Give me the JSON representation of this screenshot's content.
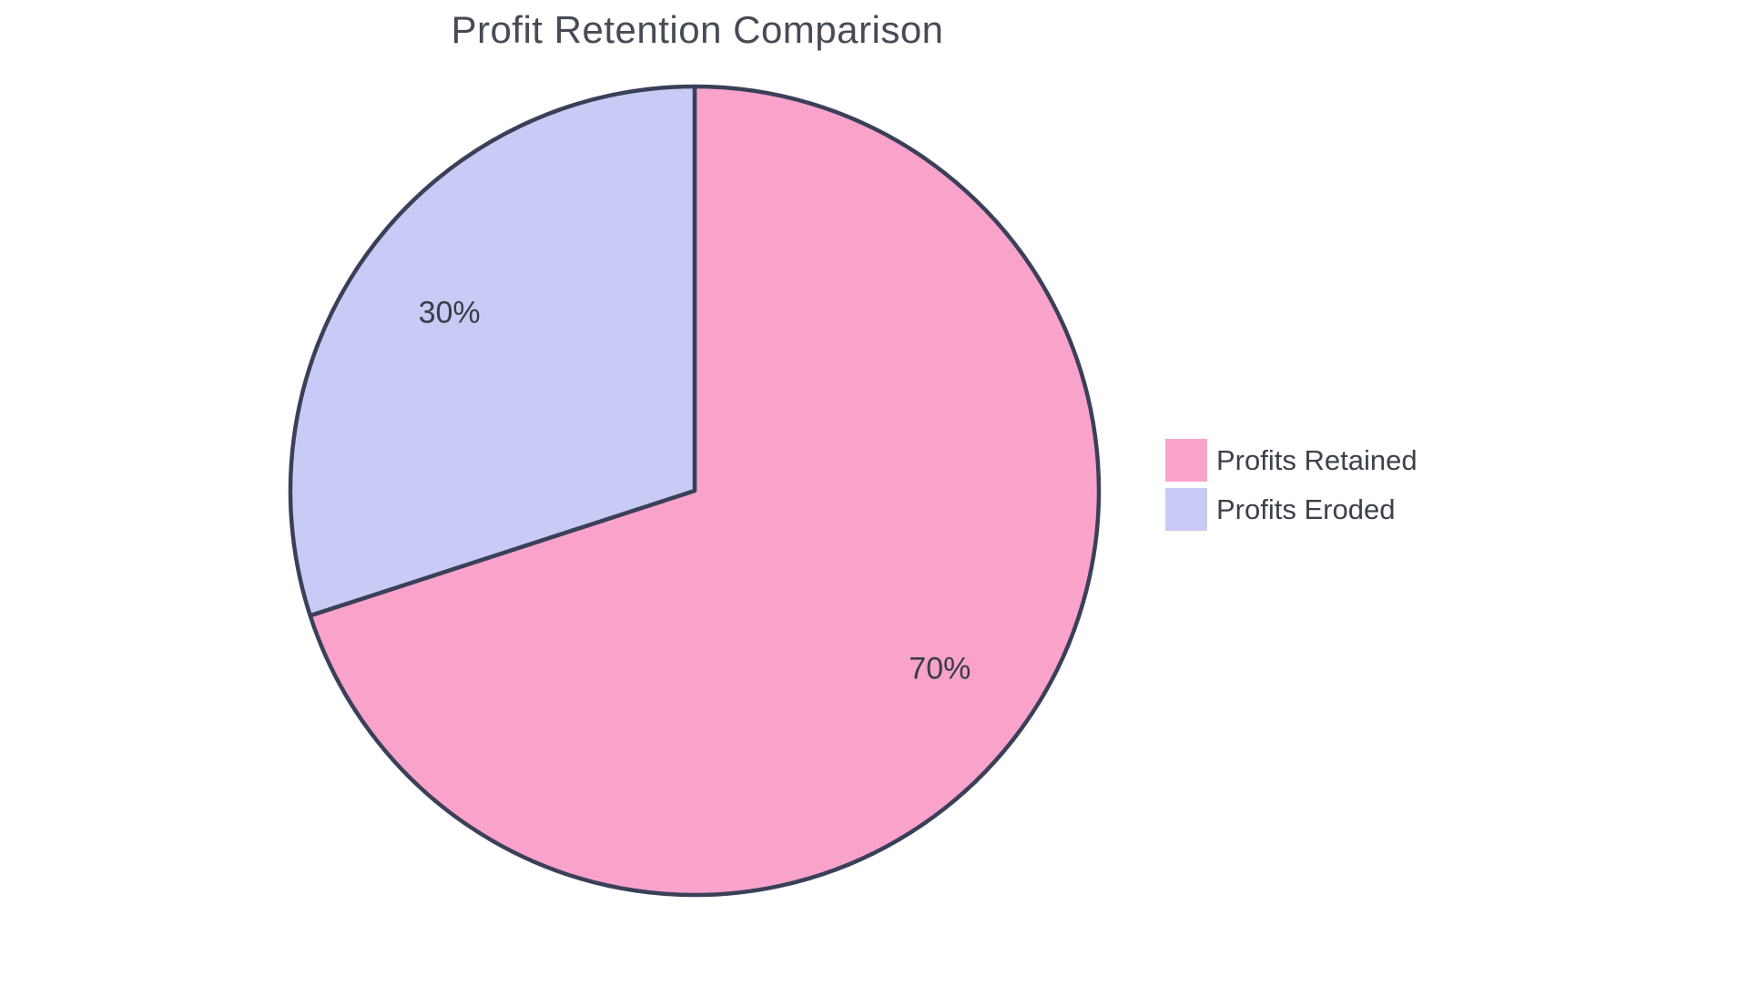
{
  "chart_data": {
    "type": "pie",
    "title": "Profit Retention Comparison",
    "slices": [
      {
        "label": "Profits Retained",
        "value": 70,
        "percent_label": "70%",
        "color": "#F9A3CB"
      },
      {
        "label": "Profits Eroded",
        "value": 30,
        "percent_label": "30%",
        "color": "#C9CAF5"
      }
    ],
    "start_angle_deg": 0,
    "direction": "clockwise",
    "outline_color": "#3B4059",
    "title_color": "#464B55",
    "percent_label_color": "#383D46",
    "legend_position": "right",
    "legend_text_color": "#3C414A",
    "background_color": "#FFFFFF"
  }
}
